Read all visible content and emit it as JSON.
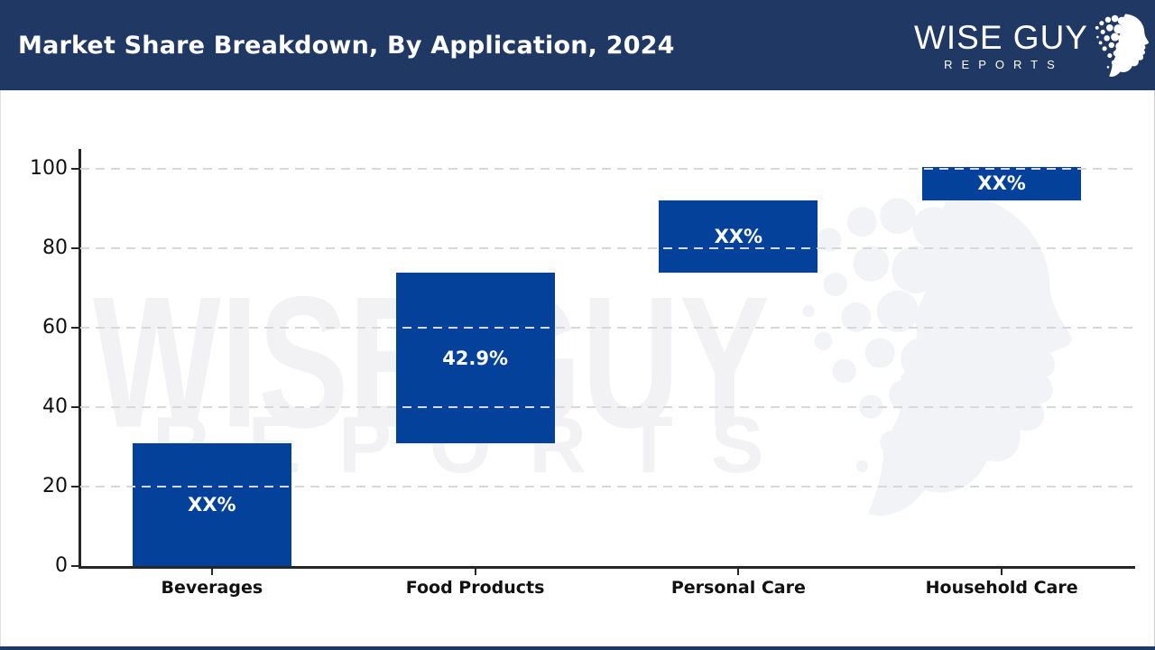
{
  "header": {
    "title": "Market Share Breakdown, By Application, 2024",
    "bg_color": "#203864",
    "logo": {
      "wordmark": "WISE GUY",
      "subtext": "REPORTS"
    }
  },
  "watermark": {
    "line1": "WISE GUY",
    "line2": "REPORTS"
  },
  "chart_data": {
    "type": "bar",
    "subtype": "waterfall",
    "title": "Market Share Breakdown, By Application, 2024",
    "categories": [
      "Beverages",
      "Food Products",
      "Personal Care",
      "Household Care"
    ],
    "segments": [
      {
        "category": "Beverages",
        "start": 0,
        "end": 30.9,
        "label": "XX%"
      },
      {
        "category": "Food Products",
        "start": 30.9,
        "end": 73.8,
        "label": "42.9%"
      },
      {
        "category": "Personal Care",
        "start": 73.8,
        "end": 92.1,
        "label": "XX%"
      },
      {
        "category": "Household Care",
        "start": 92.1,
        "end": 100.4,
        "label": "XX%"
      }
    ],
    "xlabel": "",
    "ylabel": "",
    "ylim": [
      0,
      100
    ],
    "yticks": [
      0,
      20,
      40,
      60,
      80,
      100
    ],
    "grid": "horizontal-dashed",
    "legend": "none",
    "bar_color": "#04419a",
    "bar_label_color": "#ffffff",
    "axis_color": "#262626",
    "gridline_color": "#d8d8d8",
    "tick_label_color": "#111111"
  }
}
